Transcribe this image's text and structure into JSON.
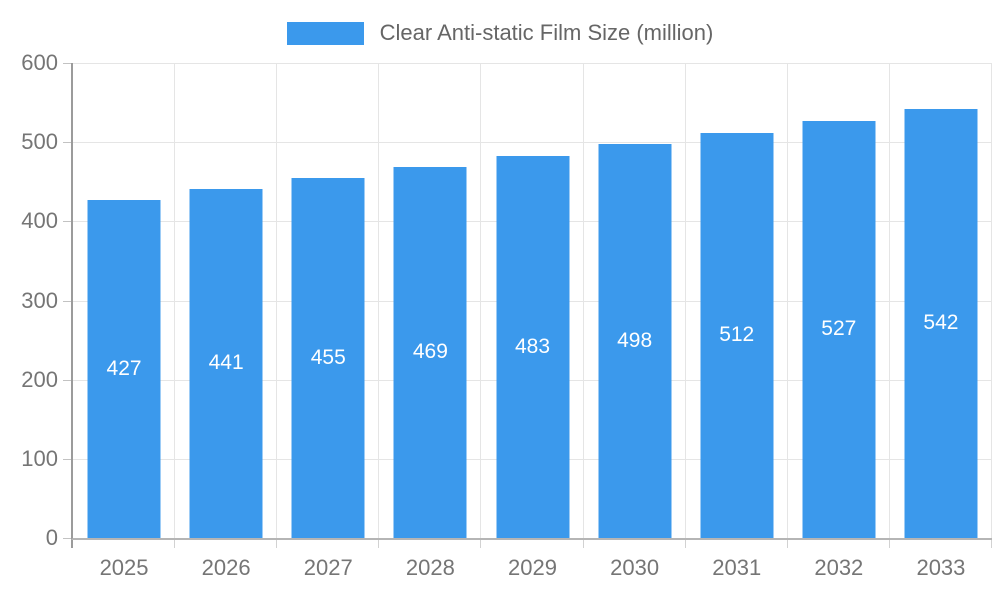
{
  "chart_data": {
    "type": "bar",
    "title": "Clear Anti-static Film Size (million)",
    "categories": [
      "2025",
      "2026",
      "2027",
      "2028",
      "2029",
      "2030",
      "2031",
      "2032",
      "2033"
    ],
    "values": [
      427,
      441,
      455,
      469,
      483,
      498,
      512,
      527,
      542
    ],
    "xlabel": "",
    "ylabel": "",
    "ylim": [
      0,
      600
    ],
    "ytick_step": 100,
    "ytick_labels": [
      "0",
      "100",
      "200",
      "300",
      "400",
      "500",
      "600"
    ],
    "grid": true,
    "legend_position": "top-center",
    "legend_entries": [
      "Clear Anti-static Film Size (million)"
    ],
    "colors": {
      "bar": "#3B99EC",
      "value_label": "#FFFFFF",
      "axis_text": "#757575",
      "legend_text": "#666666",
      "gridline": "#E5E5E5",
      "y_axis_line": "#9B9B9B",
      "x_axis_line": "#B5B5B5"
    }
  }
}
